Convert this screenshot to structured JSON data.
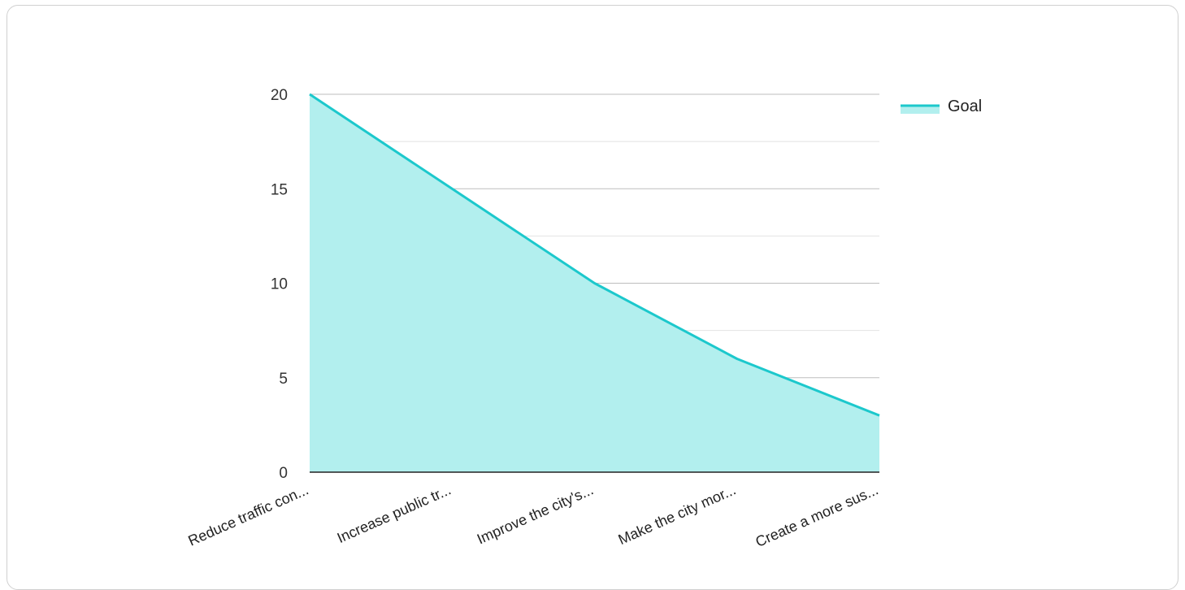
{
  "chart_data": {
    "type": "area",
    "categories": [
      "Reduce traffic con...",
      "Increase public tr...",
      "Improve the city's...",
      "Make the city mor...",
      "Create a more sus..."
    ],
    "series": [
      {
        "name": "Goal",
        "values": [
          20,
          15,
          10,
          6,
          3
        ]
      }
    ],
    "y_ticks": [
      "0",
      "5",
      "10",
      "15",
      "20"
    ],
    "ylim": [
      0,
      20
    ],
    "grid": true,
    "legend_position": "top-right",
    "colors": {
      "line": "#1cc8cc",
      "fill": "#b2efee",
      "grid": "#c8c8c8",
      "axis": "#222222"
    }
  }
}
